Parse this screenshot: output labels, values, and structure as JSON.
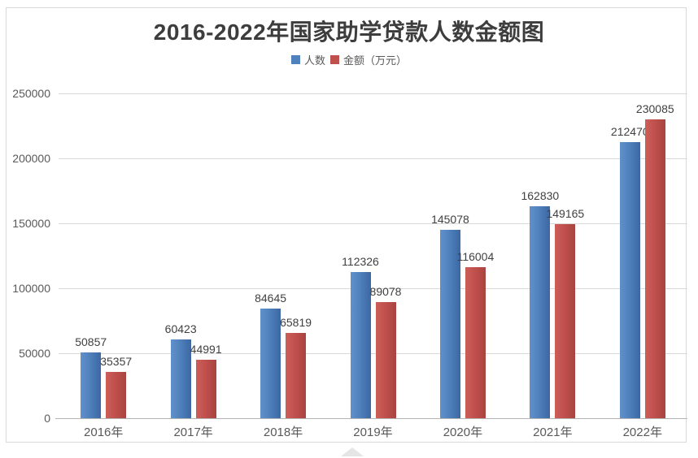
{
  "chart_data": {
    "type": "bar",
    "title": "2016-2022年国家助学贷款人数金额图",
    "categories": [
      "2016年",
      "2017年",
      "2018年",
      "2019年",
      "2020年",
      "2021年",
      "2022年"
    ],
    "series": [
      {
        "name": "人数",
        "color": "#4f81bd",
        "values": [
          50857,
          60423,
          84645,
          112326,
          145078,
          162830,
          212470
        ]
      },
      {
        "name": "金额（万元）",
        "color": "#c0504d",
        "values": [
          35357,
          44991,
          65819,
          89078,
          116004,
          149165,
          230085
        ]
      }
    ],
    "xlabel": "",
    "ylabel": "",
    "ylim": [
      0,
      250000
    ],
    "ystep": 50000,
    "y_ticks": [
      0,
      50000,
      100000,
      150000,
      200000,
      250000
    ],
    "grid": true,
    "legend_position": "top"
  },
  "colors": {
    "series_people": "#4f81bd",
    "series_amount": "#c0504d",
    "gridline": "#d9d9d9",
    "axis_text": "#595959",
    "value_label_text": "#404040",
    "frame_border": "#d9d9d9"
  }
}
